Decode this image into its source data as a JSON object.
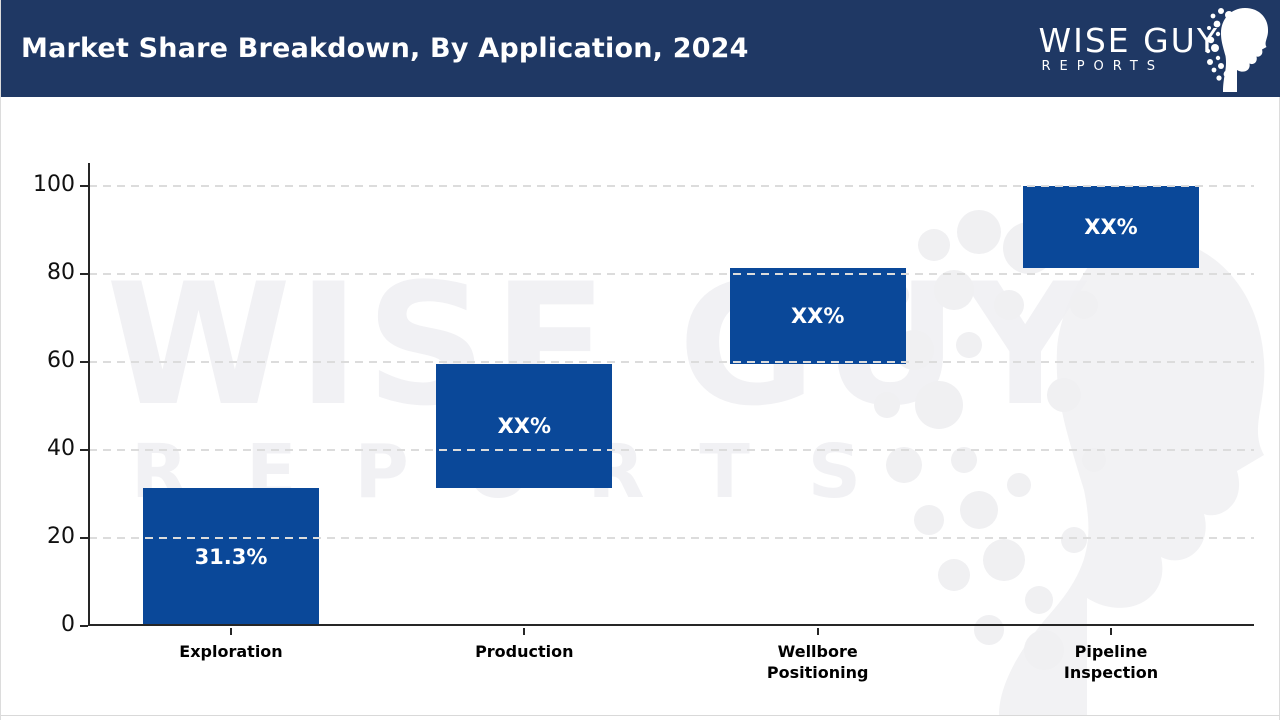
{
  "header": {
    "title": "Market Share Breakdown, By Application, 2024",
    "logo": {
      "line1": "WISE GUY",
      "line2": "REPORTS"
    }
  },
  "watermark": {
    "line1": "WISE GUY",
    "line2": "REPORTS"
  },
  "chart_data": {
    "type": "bar",
    "subtype": "waterfall",
    "title": "Market Share Breakdown, By Application, 2024",
    "categories": [
      "Exploration",
      "Production",
      "Wellbore Positioning",
      "Pipeline Inspection"
    ],
    "category_lines": [
      [
        "Exploration"
      ],
      [
        "Production"
      ],
      [
        "Wellbore",
        "Positioning"
      ],
      [
        "Pipeline",
        "Inspection"
      ]
    ],
    "segments": [
      {
        "start": 0,
        "end": 31.3
      },
      {
        "start": 31.3,
        "end": 59.5
      },
      {
        "start": 59.5,
        "end": 81.4
      },
      {
        "start": 81.4,
        "end": 100
      }
    ],
    "bar_labels": [
      "31.3%",
      "XX%",
      "XX%",
      "XX%"
    ],
    "yticks": [
      0,
      20,
      40,
      60,
      80,
      100
    ],
    "ylim": [
      0,
      105
    ],
    "xlabel": "",
    "ylabel": "",
    "grid": "horizontal-dashed-over-bars",
    "legend": "none",
    "bar_color": "#0a4899",
    "bar_label_color": "#ffffff"
  },
  "colors": {
    "header_bg": "#1f3864",
    "bar": "#0a4899",
    "gridline": "#dcdcdc",
    "axis": "#262626",
    "watermark": "#f1f1f4"
  }
}
